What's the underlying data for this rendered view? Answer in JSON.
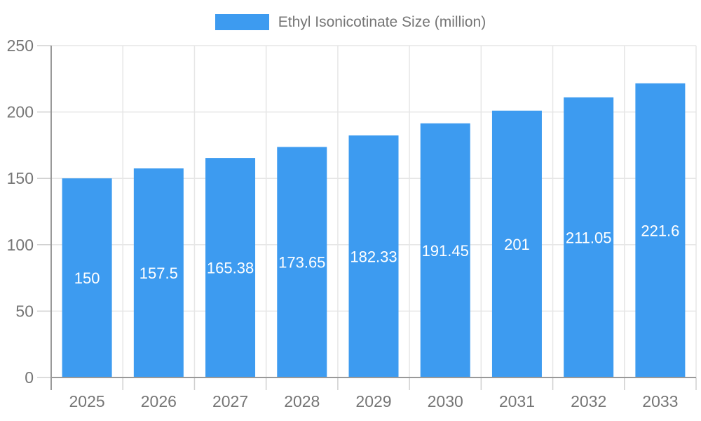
{
  "legend": {
    "label": "Ethyl Isonicotinate Size (million)"
  },
  "chart_data": {
    "type": "bar",
    "title": "Ethyl Isonicotinate Size (million)",
    "categories": [
      "2025",
      "2026",
      "2027",
      "2028",
      "2029",
      "2030",
      "2031",
      "2032",
      "2033"
    ],
    "series": [
      {
        "name": "Ethyl Isonicotinate Size (million)",
        "values": [
          150,
          157.5,
          165.38,
          173.65,
          182.33,
          191.45,
          201,
          211.05,
          221.6
        ]
      }
    ],
    "bar_value_labels": [
      "150",
      "157.5",
      "165.38",
      "173.65",
      "182.33",
      "191.45",
      "201",
      "211.05",
      "221.6"
    ],
    "xlabel": "",
    "ylabel": "",
    "ylim": [
      0,
      250
    ],
    "ytick_interval": 50,
    "ytick_labels": [
      "0",
      "50",
      "100",
      "150",
      "200",
      "250"
    ],
    "grid": "horizontal-and-vertical",
    "legend_position": "top-center",
    "bar_label_position": "inside-middle",
    "colors": {
      "bar": "#3D9BF0",
      "grid": "#E6E6E6",
      "axis": "#999999",
      "tick": "#D0D0D0",
      "axis_text": "#757575",
      "legend_text": "#757575",
      "bar_label_text": "#FFFFFF",
      "background": "#FFFFFF"
    }
  }
}
